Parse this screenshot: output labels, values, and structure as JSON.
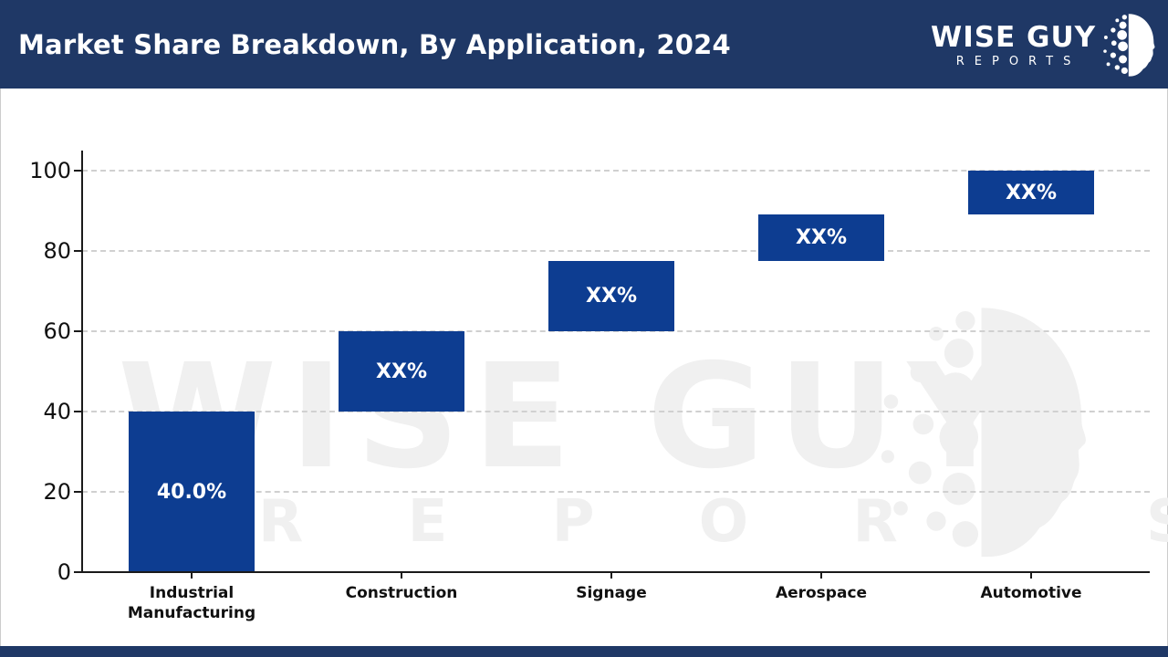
{
  "header": {
    "title": "Market Share Breakdown, By Application, 2024",
    "logo": {
      "line1": "WISE GUY",
      "line2": "REPORTS"
    }
  },
  "watermark": {
    "line1": "WISE GUY",
    "line2": "R E P O R T S"
  },
  "chart_data": {
    "type": "bar",
    "subtype": "waterfall",
    "title": "Market Share Breakdown, By Application, 2024",
    "xlabel": "",
    "ylabel": "",
    "categories": [
      "Industrial Manufacturing",
      "Construction",
      "Signage",
      "Aerospace",
      "Automotive"
    ],
    "segments": [
      {
        "category": "Industrial Manufacturing",
        "category_lines": [
          "Industrial",
          "Manufacturing"
        ],
        "start": 0,
        "end": 40,
        "value_label": "40.0%"
      },
      {
        "category": "Construction",
        "category_lines": [
          "Construction"
        ],
        "start": 40,
        "end": 60,
        "value_label": "XX%"
      },
      {
        "category": "Signage",
        "category_lines": [
          "Signage"
        ],
        "start": 60,
        "end": 77.5,
        "value_label": "XX%"
      },
      {
        "category": "Aerospace",
        "category_lines": [
          "Aerospace"
        ],
        "start": 77.5,
        "end": 89,
        "value_label": "XX%"
      },
      {
        "category": "Automotive",
        "category_lines": [
          "Automotive"
        ],
        "start": 89,
        "end": 100,
        "value_label": "XX%"
      }
    ],
    "y_ticks": [
      0,
      20,
      40,
      60,
      80,
      100
    ],
    "ylim": [
      0,
      105
    ],
    "grid": "horizontal-dashed",
    "legend": "none",
    "colors": {
      "bar": "#0D3D91",
      "bar_label": "#FFFFFF",
      "header_background": "#1F3866",
      "footer_background": "#1F3866",
      "grid": "#D0D0D0",
      "axis": "#1A1A1A",
      "watermark": "#F0F0F0"
    }
  }
}
